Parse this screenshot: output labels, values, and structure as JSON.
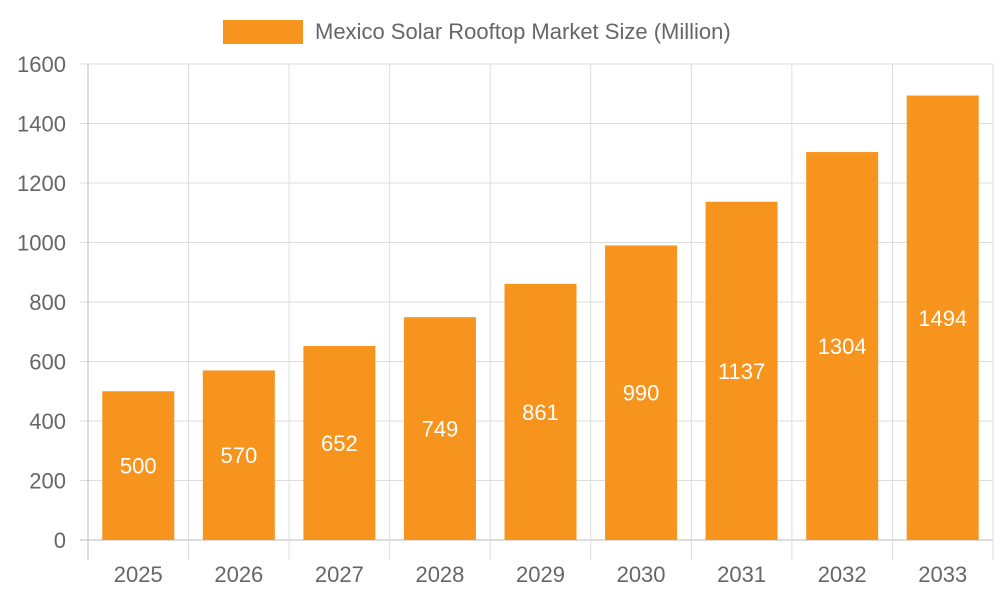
{
  "chart_data": {
    "type": "bar",
    "categories": [
      "2025",
      "2026",
      "2027",
      "2028",
      "2029",
      "2030",
      "2031",
      "2032",
      "2033"
    ],
    "series": [
      {
        "name": "Mexico Solar Rooftop Market Size (Million)",
        "values": [
          500,
          570,
          652,
          749,
          861,
          990,
          1137,
          1304,
          1494
        ]
      }
    ],
    "ylim": [
      0,
      1600
    ],
    "yticks": [
      0,
      200,
      400,
      600,
      800,
      1000,
      1200,
      1400,
      1600
    ],
    "grid": true,
    "legend": "top",
    "data_labels": "inside-center",
    "colors": {
      "bar": "#F7941E",
      "label": "#FFFFFF",
      "grid": "#DDDDDD",
      "text": "#666666"
    }
  }
}
